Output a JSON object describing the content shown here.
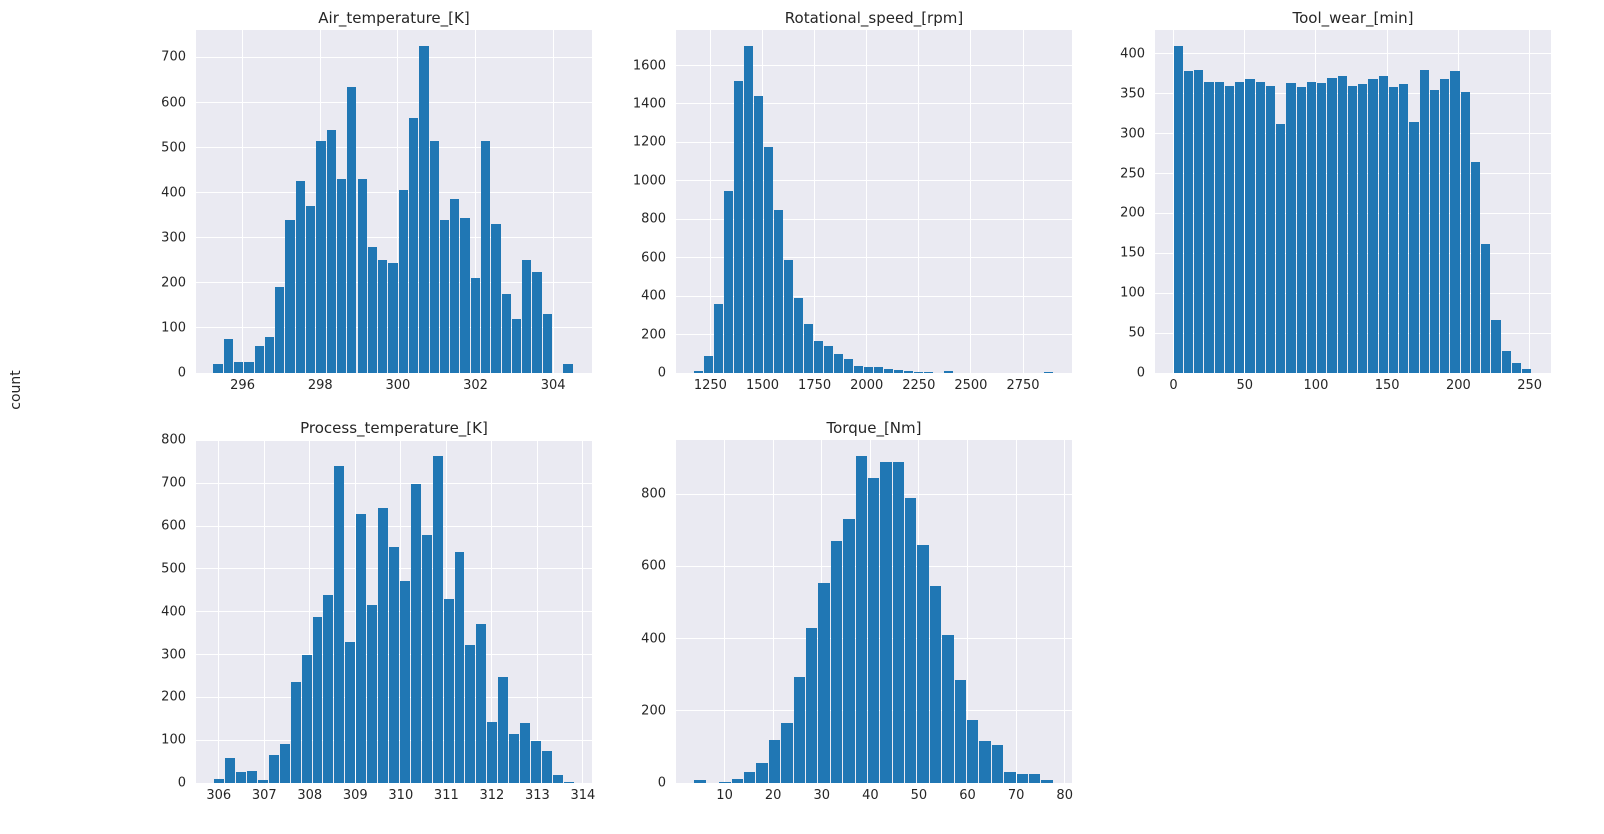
{
  "figure": {
    "shared_ylabel": "count"
  },
  "chart_data": [
    {
      "type": "bar",
      "title": "Air_temperature_[K]",
      "xlabel": "",
      "ylabel": "count",
      "xlim": [
        294.8,
        305.0
      ],
      "ylim": [
        0,
        761
      ],
      "xticks": [
        296,
        298,
        300,
        302,
        304
      ],
      "yticks": [
        0,
        100,
        200,
        300,
        400,
        500,
        600,
        700
      ],
      "grid": true,
      "legend": false,
      "bin_start": 295.25,
      "bin_width": 0.265,
      "counts": [
        20,
        75,
        25,
        25,
        60,
        80,
        190,
        340,
        425,
        370,
        515,
        540,
        430,
        635,
        430,
        280,
        250,
        245,
        405,
        565,
        725,
        515,
        340,
        385,
        345,
        210,
        515,
        330,
        175,
        120,
        250,
        225,
        130,
        0,
        20
      ]
    },
    {
      "type": "bar",
      "title": "Rotational_speed_[rpm]",
      "xlabel": "",
      "ylabel": "count",
      "xlim": [
        1085,
        2985
      ],
      "ylim": [
        0,
        1785
      ],
      "xticks": [
        1250,
        1500,
        1750,
        2000,
        2250,
        2500,
        2750
      ],
      "yticks": [
        0,
        200,
        400,
        600,
        800,
        1000,
        1200,
        1400,
        1600
      ],
      "grid": true,
      "legend": false,
      "bin_start": 1170,
      "bin_width": 48,
      "counts": [
        10,
        90,
        360,
        945,
        1520,
        1700,
        1440,
        1175,
        850,
        590,
        390,
        255,
        165,
        140,
        100,
        75,
        35,
        30,
        30,
        20,
        15,
        8,
        5,
        3,
        0,
        8,
        0,
        0,
        0,
        0,
        0,
        0,
        0,
        0,
        0,
        3
      ]
    },
    {
      "type": "bar",
      "title": "Tool_wear_[min]",
      "xlabel": "",
      "ylabel": "count",
      "xlim": [
        -13,
        265
      ],
      "ylim": [
        0,
        430
      ],
      "xticks": [
        0,
        50,
        100,
        150,
        200,
        250
      ],
      "yticks": [
        0,
        50,
        100,
        150,
        200,
        250,
        300,
        350,
        400
      ],
      "grid": true,
      "legend": false,
      "bin_start": 0,
      "bin_width": 7.2,
      "counts": [
        410,
        378,
        380,
        365,
        365,
        360,
        365,
        368,
        365,
        360,
        312,
        363,
        358,
        365,
        363,
        370,
        372,
        360,
        362,
        368,
        372,
        358,
        362,
        315,
        380,
        355,
        368,
        378,
        352,
        265,
        162,
        67,
        28,
        12,
        5
      ]
    },
    {
      "type": "bar",
      "title": "Process_temperature_[K]",
      "xlabel": "",
      "ylabel": "count",
      "xlim": [
        305.5,
        314.2
      ],
      "ylim": [
        0,
        801
      ],
      "xticks": [
        306,
        307,
        308,
        309,
        310,
        311,
        312,
        313,
        314
      ],
      "yticks": [
        0,
        100,
        200,
        300,
        400,
        500,
        600,
        700,
        800
      ],
      "grid": true,
      "legend": false,
      "bin_start": 305.9,
      "bin_width": 0.24,
      "counts": [
        10,
        58,
        25,
        28,
        8,
        65,
        90,
        235,
        300,
        388,
        438,
        740,
        330,
        628,
        415,
        643,
        550,
        472,
        698,
        580,
        763,
        430,
        540,
        322,
        372,
        142,
        247,
        115,
        140,
        98,
        75,
        18,
        3
      ]
    },
    {
      "type": "bar",
      "title": "Torque_[Nm]",
      "xlabel": "",
      "ylabel": "count",
      "xlim": [
        0,
        81.5
      ],
      "ylim": [
        0,
        950
      ],
      "xticks": [
        10,
        20,
        30,
        40,
        50,
        60,
        70,
        80
      ],
      "yticks": [
        0,
        200,
        400,
        600,
        800
      ],
      "grid": true,
      "legend": false,
      "bin_start": 3.8,
      "bin_width": 2.55,
      "counts": [
        8,
        0,
        3,
        10,
        30,
        55,
        120,
        165,
        295,
        430,
        555,
        670,
        730,
        905,
        845,
        890,
        890,
        790,
        660,
        545,
        410,
        285,
        175,
        115,
        105,
        30,
        25,
        25,
        8
      ]
    }
  ]
}
